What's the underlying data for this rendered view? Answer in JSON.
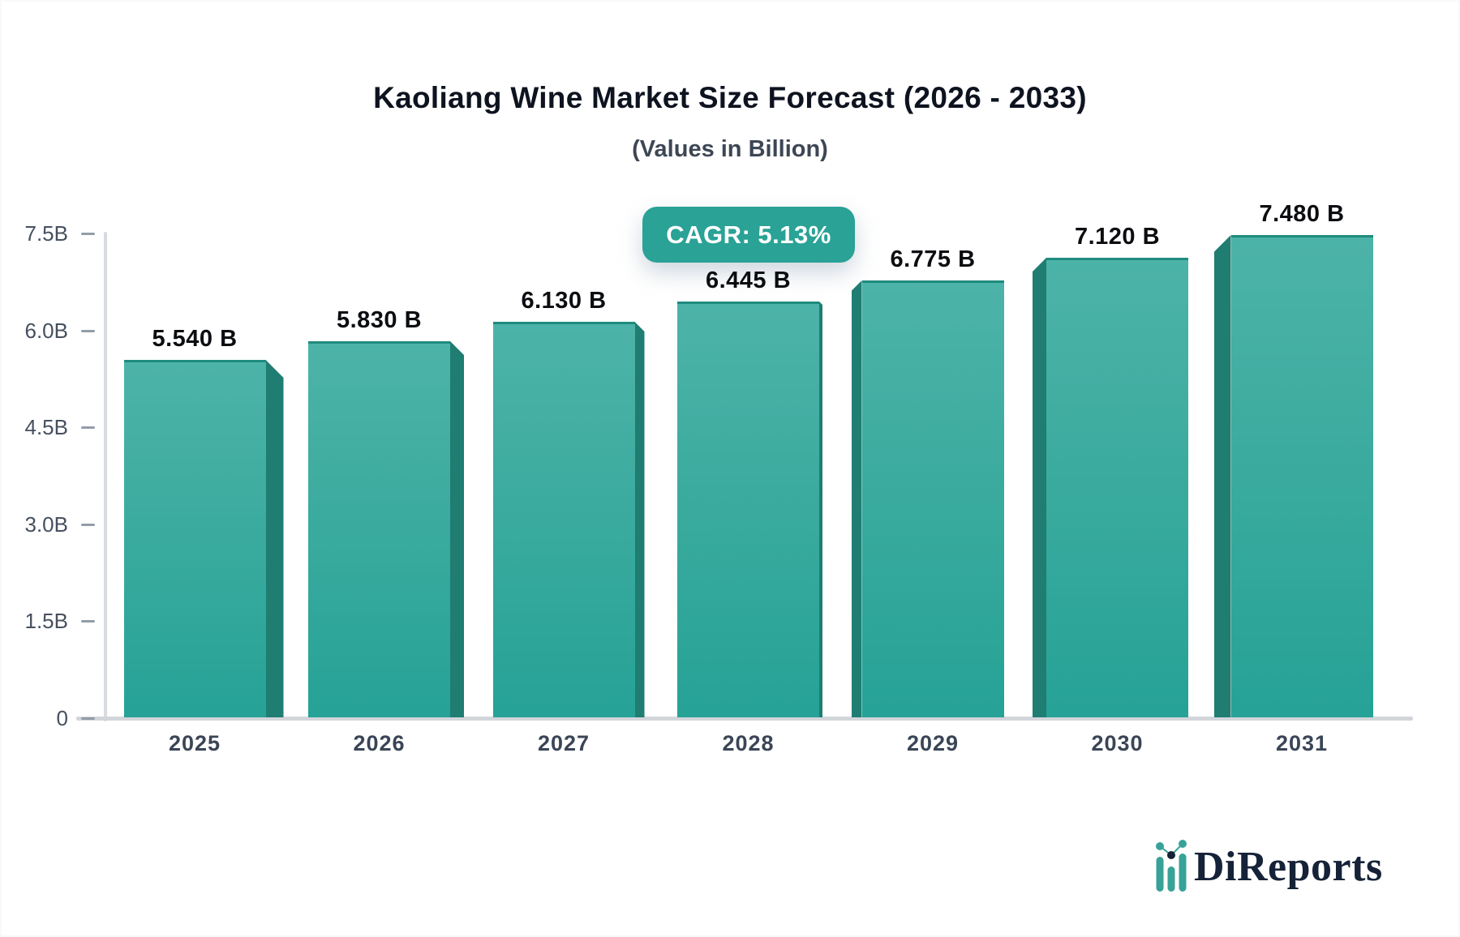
{
  "chart_data": {
    "type": "bar",
    "title": "Kaoliang Wine Market Size Forecast (2026 - 2033)",
    "subtitle": "(Values in Billion)",
    "badge_label": "CAGR: 5.13%",
    "categories": [
      "2025",
      "2026",
      "2027",
      "2028",
      "2029",
      "2030",
      "2031"
    ],
    "values": [
      5.54,
      5.83,
      6.13,
      6.445,
      6.775,
      7.12,
      7.48
    ],
    "value_labels": [
      "5.540 B",
      "5.830 B",
      "6.130 B",
      "6.445 B",
      "6.775 B",
      "7.120 B",
      "7.480 B"
    ],
    "xlabel": "",
    "ylabel": "",
    "ylim": [
      0,
      7.5
    ],
    "yticks": [
      {
        "label": "7.5B",
        "value": 7.5
      },
      {
        "label": "6.0B",
        "value": 6.0
      },
      {
        "label": "4.5B",
        "value": 4.5
      },
      {
        "label": "3.0B",
        "value": 3.0
      },
      {
        "label": "1.5B",
        "value": 1.5
      },
      {
        "label": "0",
        "value": 0
      }
    ],
    "grid": false,
    "legend": false,
    "bar_style_3d": true
  },
  "colors": {
    "bar_face_top": "#4db3a8",
    "bar_face_bottom": "#26a296",
    "bar_side": "#1f7d72",
    "bar_rim": "#1f8b7e",
    "badge_background": "#2aa296",
    "badge_text": "#ffffff",
    "axis_line": "#d2d6db",
    "axis_text": "#46505f",
    "logo_navy": "#152238",
    "logo_teal": "#38a298"
  },
  "branding": {
    "logo_text": "DiReports",
    "logo_icon": "mini-bar-line-chart-icon"
  }
}
